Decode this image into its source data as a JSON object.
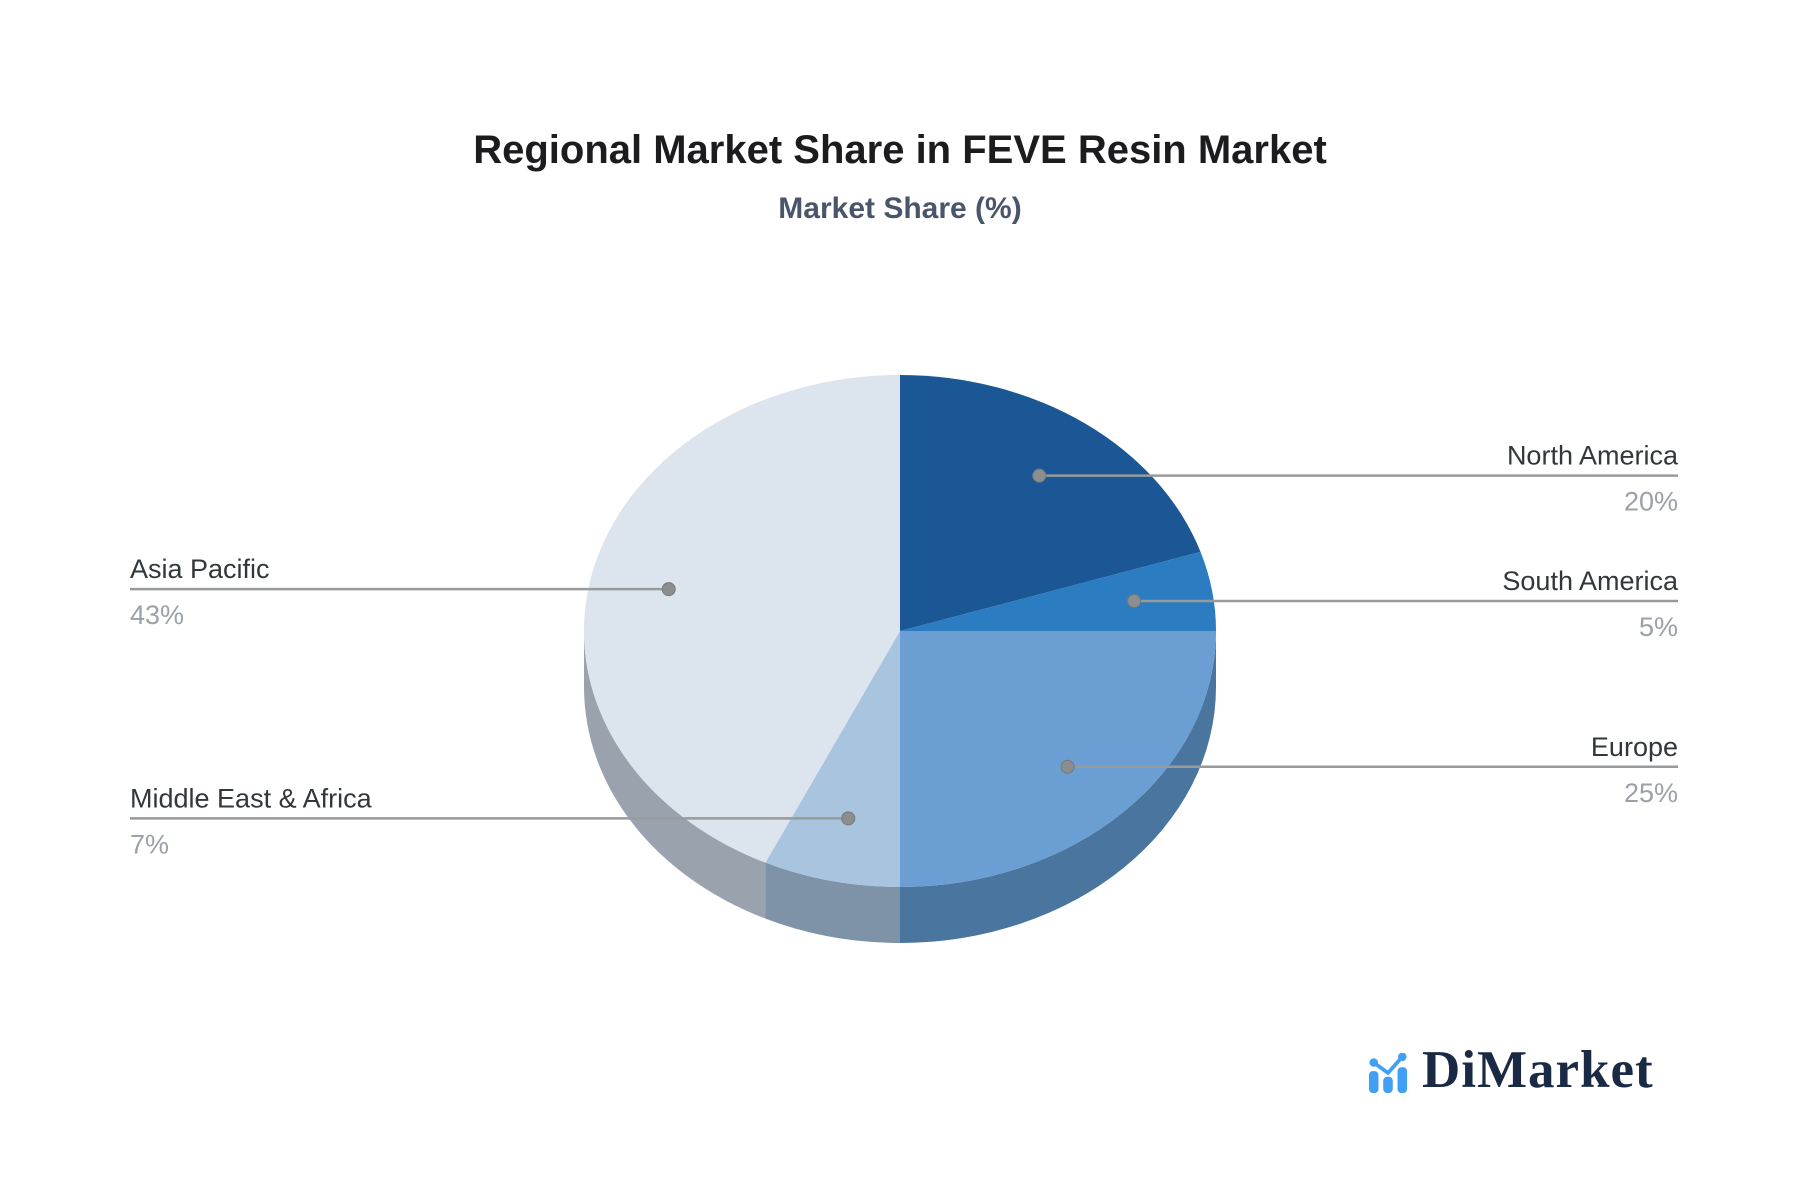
{
  "title": "Regional Market Share in FEVE Resin Market",
  "subtitle": "Market Share (%)",
  "logo": {
    "text": "DiMarket",
    "icon": "bar-line-chart-icon",
    "icon_color": "#42a0f4",
    "text_color": "#1b2a44"
  },
  "chart_data": {
    "type": "pie",
    "style": "3d",
    "title": "Regional Market Share in FEVE Resin Market",
    "subtitle": "Market Share (%)",
    "unit": "%",
    "start_angle_deg": 0,
    "direction": "clockwise",
    "legend_position": "callout-labels",
    "slices": [
      {
        "label": "North America",
        "value": 20,
        "display": "20%",
        "color": "#1a5794",
        "side_color": "#14467a",
        "callout_side": "right"
      },
      {
        "label": "South America",
        "value": 5,
        "display": "5%",
        "color": "#2b7cc0",
        "side_color": "#23659d",
        "callout_side": "right"
      },
      {
        "label": "Europe",
        "value": 25,
        "display": "25%",
        "color": "#6b9fd3",
        "side_color": "#4a759f",
        "callout_side": "right"
      },
      {
        "label": "Middle East & Africa",
        "value": 7,
        "display": "7%",
        "color": "#a9c4df",
        "side_color": "#7e93a8",
        "callout_side": "left"
      },
      {
        "label": "Asia Pacific",
        "value": 43,
        "display": "43%",
        "color": "#dce4ee",
        "side_color": "#9aa3ad",
        "callout_side": "left"
      }
    ],
    "callout_line_color": "#999a9b",
    "label_color": "#32373b",
    "value_color": "#9ba1a6"
  }
}
